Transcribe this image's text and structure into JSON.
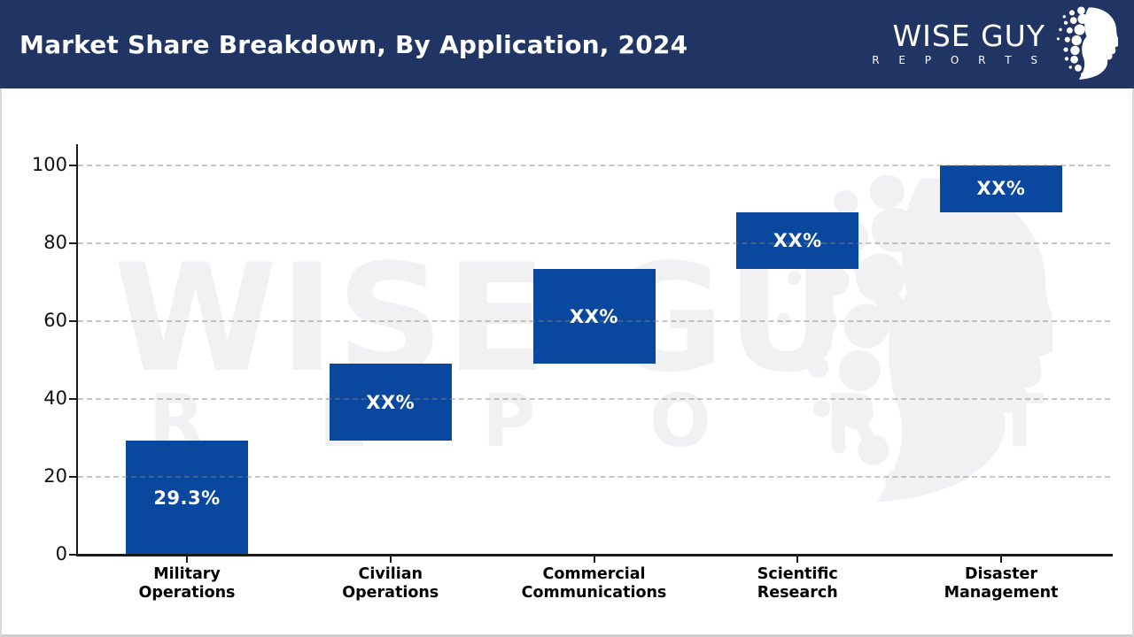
{
  "header": {
    "title": "Market Share Breakdown, By Application, 2024",
    "logo": {
      "line1": "WISE GUY",
      "line2": "REPORTS"
    }
  },
  "watermark": {
    "line1": "WISE GUY",
    "line2": "REPORTS"
  },
  "colors": {
    "header_bg": "#213565",
    "bar": "#0a48a0",
    "axis": "#1a1a1a",
    "bar_label": "#ffffff",
    "watermark": "#f1f1f3"
  },
  "chart_data": {
    "type": "bar",
    "subtype": "waterfall",
    "title": "Market Share Breakdown, By Application, 2024",
    "categories": [
      "Military Operations",
      "Civilian Operations",
      "Commercial Communications",
      "Scientific Research",
      "Disaster Management"
    ],
    "segments": [
      {
        "category": "Military Operations",
        "start": 0,
        "end": 29.3,
        "label": "29.3%"
      },
      {
        "category": "Civilian Operations",
        "start": 29.3,
        "end": 49.0,
        "label": "XX%"
      },
      {
        "category": "Commercial Communications",
        "start": 49.0,
        "end": 73.4,
        "label": "XX%"
      },
      {
        "category": "Scientific Research",
        "start": 73.4,
        "end": 88.0,
        "label": "XX%"
      },
      {
        "category": "Disaster Management",
        "start": 88.0,
        "end": 100.0,
        "label": "XX%"
      }
    ],
    "xlabel": "",
    "ylabel": "",
    "ylim": [
      0,
      100
    ],
    "yticks": [
      0,
      20,
      40,
      60,
      80,
      100
    ],
    "grid": "horizontal dashed gridlines drawn above bars",
    "legend": "none"
  }
}
